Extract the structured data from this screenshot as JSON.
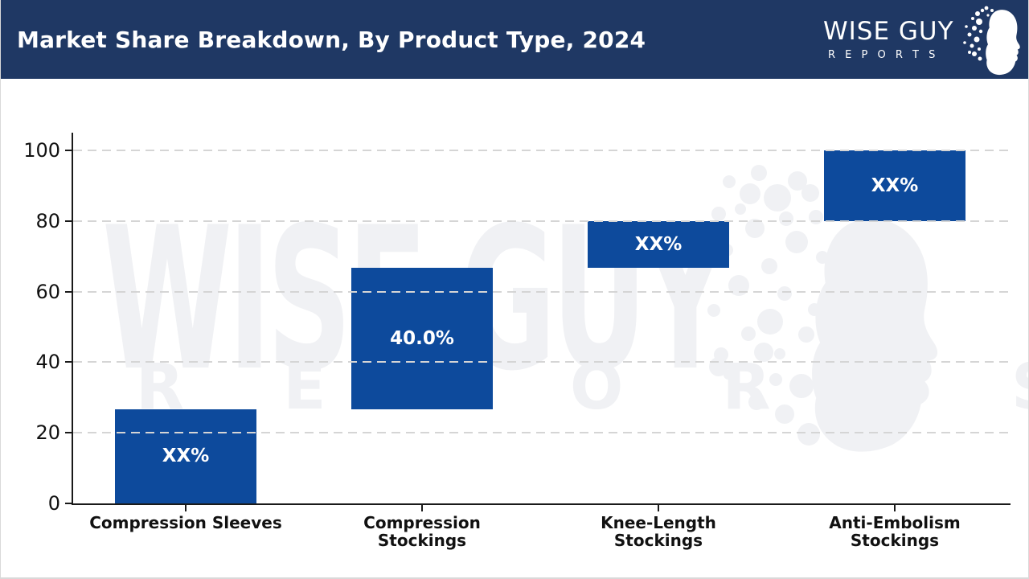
{
  "header": {
    "title": "Market Share Breakdown, By Product Type, 2024",
    "logo": {
      "line1": "WISE GUY",
      "line2": "R E P O R T S"
    }
  },
  "watermark": {
    "line1": "WISE GUY",
    "line2": "R E P O R T S"
  },
  "colors": {
    "header_bg": "#1f3864",
    "bar": "#0d4a9c",
    "bar_label": "#ffffff",
    "gridline": "#d5d5d5",
    "axis": "#1a1a1a",
    "tick_label": "#111111",
    "watermark": "#f0f1f4"
  },
  "chart_data": {
    "type": "bar",
    "variant": "floating-waterfall",
    "title": "Market Share Breakdown, By Product Type, 2024",
    "categories": [
      "Compression Sleeves",
      "Compression Stockings",
      "Knee-Length Stockings",
      "Anti-Embolism Stockings"
    ],
    "segments": [
      {
        "category": "Compression Sleeves",
        "start": 0,
        "end": 26.7,
        "label": "XX%"
      },
      {
        "category": "Compression Stockings",
        "start": 26.7,
        "end": 66.7,
        "label": "40.0%"
      },
      {
        "category": "Knee-Length Stockings",
        "start": 66.7,
        "end": 80,
        "label": "XX%"
      },
      {
        "category": "Anti-Embolism Stockings",
        "start": 80,
        "end": 100,
        "label": "XX%"
      }
    ],
    "xlabel": "",
    "ylabel": "",
    "ylim": [
      0,
      100
    ],
    "yticks": [
      0,
      20,
      40,
      60,
      80,
      100
    ],
    "grid": "horizontal-dashed",
    "legend": "none"
  }
}
